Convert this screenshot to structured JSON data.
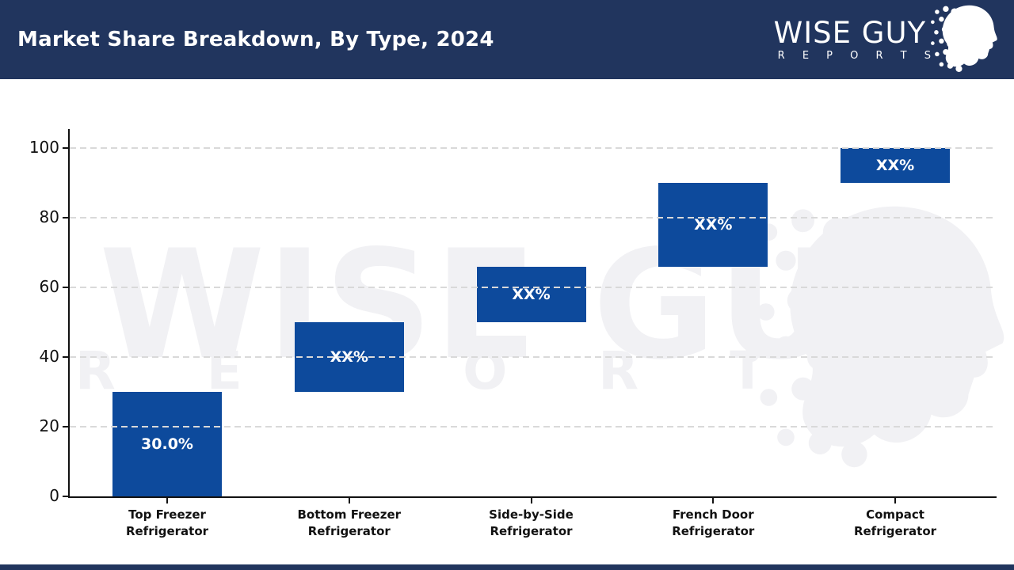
{
  "header": {
    "title": "Market Share Breakdown, By Type, 2024",
    "logo": {
      "line1": "WISE GUY",
      "line2": "R E P O R T S"
    }
  },
  "watermark": {
    "line1": "WISE GUY",
    "line2": "R E P O R T S"
  },
  "colors": {
    "header_bg": "#21355e",
    "bar": "#0d4a9c",
    "grid": "#d9d9d9",
    "axis": "#111111",
    "bar_label_text": "#ffffff",
    "watermark": "#f1f1f4"
  },
  "chart_data": {
    "type": "bar",
    "subtype": "waterfall",
    "title": "Market Share Breakdown, By Type, 2024",
    "categories": [
      "Top Freezer Refrigerator",
      "Bottom Freezer Refrigerator",
      "Side-by-Side Refrigerator",
      "French Door Refrigerator",
      "Compact Refrigerator"
    ],
    "categories_two_line": [
      [
        "Top Freezer",
        "Refrigerator"
      ],
      [
        "Bottom Freezer",
        "Refrigerator"
      ],
      [
        "Side-by-Side",
        "Refrigerator"
      ],
      [
        "French Door",
        "Refrigerator"
      ],
      [
        "Compact",
        "Refrigerator"
      ]
    ],
    "segments": [
      {
        "category": "Top Freezer Refrigerator",
        "start": 0,
        "end": 30,
        "label": "30.0%"
      },
      {
        "category": "Bottom Freezer Refrigerator",
        "start": 30,
        "end": 50,
        "label": "XX%"
      },
      {
        "category": "Side-by-Side Refrigerator",
        "start": 50,
        "end": 66,
        "label": "XX%"
      },
      {
        "category": "French Door Refrigerator",
        "start": 66,
        "end": 90,
        "label": "XX%"
      },
      {
        "category": "Compact Refrigerator",
        "start": 90,
        "end": 100,
        "label": "XX%"
      }
    ],
    "yticks": [
      0,
      20,
      40,
      60,
      80,
      100
    ],
    "ylim": [
      0,
      105
    ],
    "xlabel": "",
    "ylabel": "",
    "grid": "horizontal-dashed",
    "legend": "none"
  }
}
